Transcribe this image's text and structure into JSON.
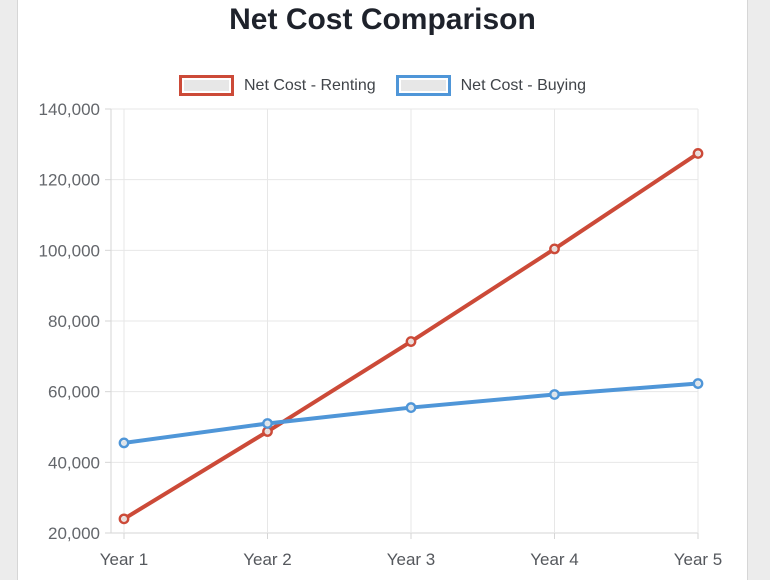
{
  "page": {
    "title": "Net Cost Comparison"
  },
  "legend": {
    "items": [
      {
        "label": "Net Cost - Renting",
        "color": "#cc4a38"
      },
      {
        "label": "Net Cost - Buying",
        "color": "#4f96d8"
      }
    ]
  },
  "colors": {
    "renting_line": "#cc4a38",
    "buying_line": "#4f96d8",
    "page_background": "#ececec",
    "card_background": "#ffffff",
    "card_border": "#d6d6d6",
    "gridline": "#e7e7e7",
    "axis_line": "#d6d6d6",
    "y_tick_text": "#63666b",
    "x_tick_text": "#55585d",
    "title_text": "#1e222b",
    "legend_text": "#404449",
    "point_fill": "#ececec",
    "legend_swatch_fill": "#e7e7e7"
  },
  "chart_data": {
    "type": "line",
    "title": "Net Cost Comparison",
    "categories": [
      "Year 1",
      "Year 2",
      "Year 3",
      "Year 4",
      "Year 5"
    ],
    "series": [
      {
        "name": "Net Cost - Renting",
        "color": "#cc4a38",
        "values": [
          24000,
          48720,
          74182,
          100407,
          127419
        ]
      },
      {
        "name": "Net Cost - Buying",
        "color": "#4f96d8",
        "values": [
          45500,
          51000,
          55500,
          59200,
          62300
        ]
      }
    ],
    "xlabel": "",
    "ylabel": "",
    "ylim": [
      20000,
      140000
    ],
    "ytick_step": 20000,
    "ytick_labels": [
      "20,000",
      "40,000",
      "60,000",
      "80,000",
      "100,000",
      "120,000",
      "140,000"
    ],
    "grid": true,
    "legend_position": "top"
  }
}
